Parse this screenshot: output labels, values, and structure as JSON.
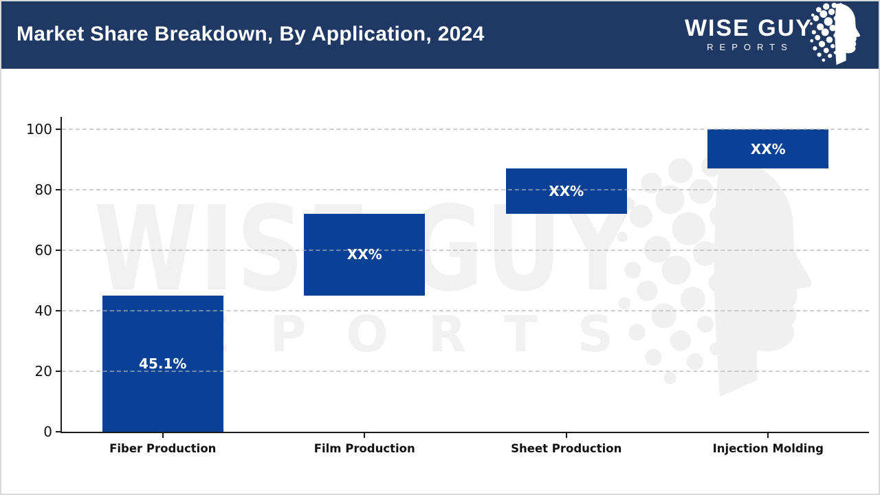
{
  "header": {
    "title": "Market Share Breakdown, By Application, 2024",
    "bg_color": "#203864"
  },
  "logo": {
    "wordmark": "WISE GUY",
    "subtext": "REPORTS"
  },
  "watermark": {
    "line1": "WISE GUY",
    "line2": "REPORTS"
  },
  "chart_data": {
    "type": "bar",
    "subtype": "waterfall",
    "title": "Market Share Breakdown, By Application, 2024",
    "units": "percent",
    "categories": [
      "Fiber Production",
      "Film Production",
      "Sheet Production",
      "Injection Molding"
    ],
    "segments": [
      {
        "category": "Fiber Production",
        "start": 0,
        "end": 45.1,
        "label": "45.1%"
      },
      {
        "category": "Film Production",
        "start": 45.1,
        "end": 72,
        "label": "XX%"
      },
      {
        "category": "Sheet Production",
        "start": 72,
        "end": 87,
        "label": "XX%"
      },
      {
        "category": "Injection Molding",
        "start": 87,
        "end": 100,
        "label": "XX%"
      }
    ],
    "yticks": [
      0,
      20,
      40,
      60,
      80,
      100
    ],
    "ylim": [
      0,
      104
    ],
    "xlabel": "",
    "ylabel": "",
    "grid": "dashed-horizontal",
    "legend": "none",
    "bar_color": "#0a4196",
    "value_label_color": "#ffffff",
    "axis_color": "#1a1a1a"
  }
}
